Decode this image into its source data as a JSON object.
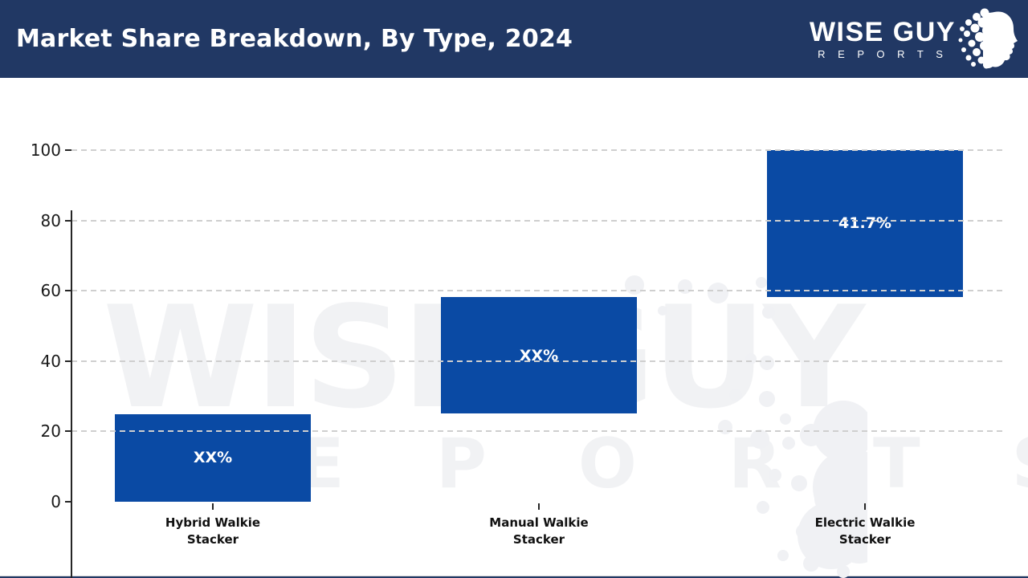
{
  "header": {
    "title": "Market Share Breakdown, By Type, 2024",
    "logo": {
      "wordmark": "WISE GUY",
      "subtext": "R E P O R T S",
      "face_icon": "dotted-face-profile"
    }
  },
  "watermark": {
    "line1": "WISE GUY",
    "line2": "R E P O R T S"
  },
  "colors": {
    "header_bg": "#213864",
    "bar_fill": "#0A4AA4",
    "bar_label_text": "#ffffff",
    "axis_text": "#1a1a1a",
    "gridline": "#cfcfcf",
    "watermark": "#f1f2f4"
  },
  "chart_data": {
    "type": "bar",
    "subtype": "floating-segment-waterfall",
    "title": "Market Share Breakdown, By Type, 2024",
    "categories": [
      "Hybrid Walkie\nStacker",
      "Manual Walkie\nStacker",
      "Electric Walkie\nStacker"
    ],
    "bars": [
      {
        "category": "Hybrid Walkie Stacker",
        "start": 0,
        "end": 25,
        "value_label": "XX%"
      },
      {
        "category": "Manual Walkie Stacker",
        "start": 25,
        "end": 58.3,
        "value_label": "XX%"
      },
      {
        "category": "Electric Walkie Stacker",
        "start": 58.3,
        "end": 100,
        "value_label": "41.7%"
      }
    ],
    "ylim": [
      0,
      100
    ],
    "yticks": [
      0,
      20,
      40,
      60,
      80,
      100
    ],
    "xlabel": "",
    "ylabel": "",
    "grid": "horizontal-dashed",
    "legend": null
  }
}
